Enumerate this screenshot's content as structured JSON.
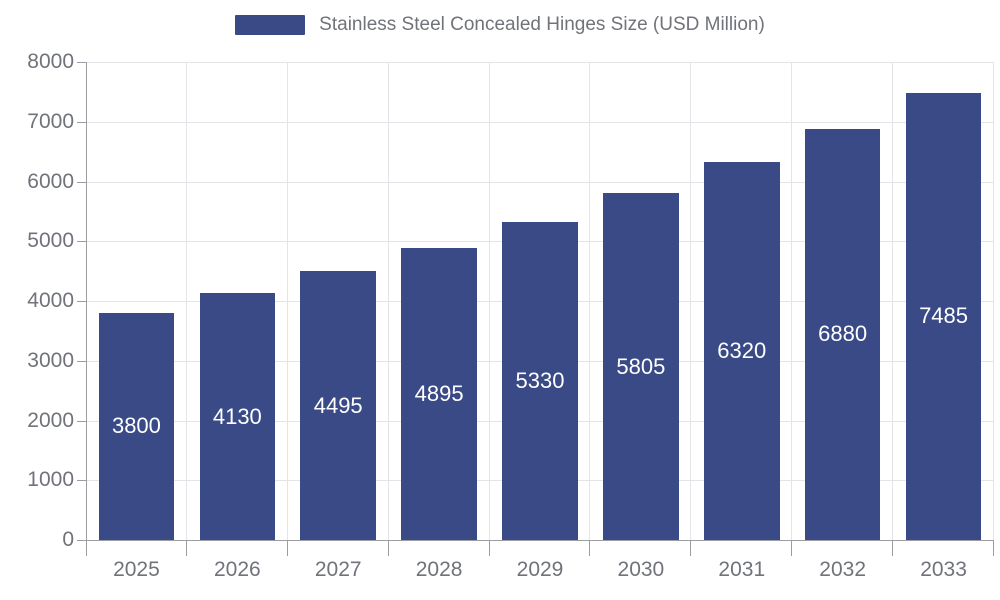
{
  "legend": {
    "label": "Stainless Steel Concealed Hinges Size (USD Million)"
  },
  "colors": {
    "bar": "#394a86",
    "grid": "#e3e4e8",
    "axis": "#9b9da3",
    "text": "#71737a",
    "value_label": "#ffffff",
    "background": "#ffffff"
  },
  "chart_data": {
    "type": "bar",
    "title": "Stainless Steel Concealed Hinges Size (USD Million)",
    "categories": [
      "2025",
      "2026",
      "2027",
      "2028",
      "2029",
      "2030",
      "2031",
      "2032",
      "2033"
    ],
    "values": [
      3800,
      4130,
      4495,
      4895,
      5330,
      5805,
      6320,
      6880,
      7485
    ],
    "yticks": [
      "0",
      "1000",
      "2000",
      "3000",
      "4000",
      "5000",
      "6000",
      "7000",
      "8000"
    ],
    "xlabel": "",
    "ylabel": "",
    "ylim": [
      0,
      8000
    ],
    "ytick_step": 1000,
    "grid": true,
    "legend_position": "top",
    "value_label_position": "inside-center",
    "bar_width_fraction": 0.75
  }
}
